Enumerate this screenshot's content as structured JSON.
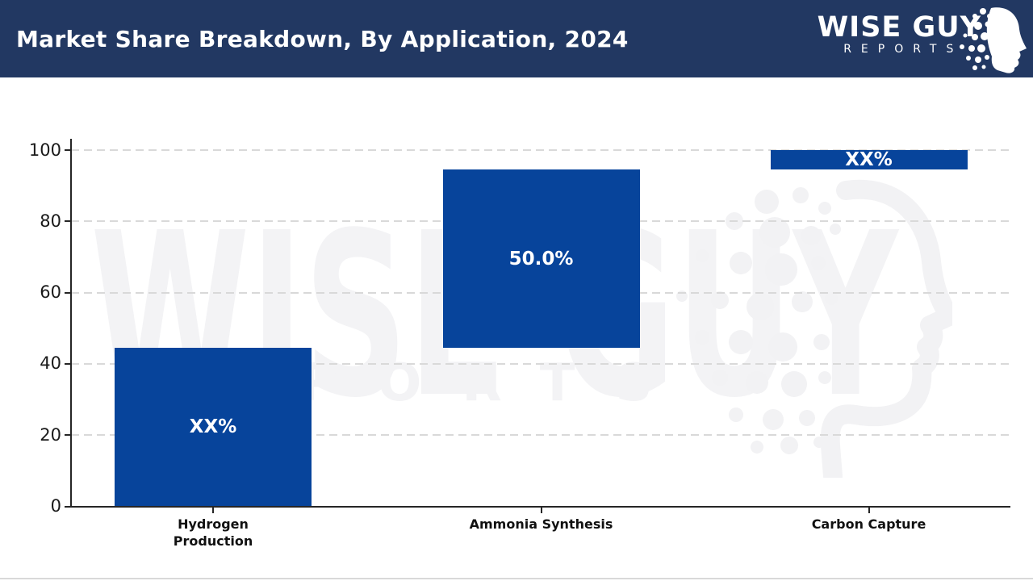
{
  "header": {
    "title": "Market Share Breakdown, By Application, 2024",
    "brand": {
      "line1": "WISE GUY",
      "line2": "REPORTS"
    }
  },
  "watermark": {
    "line1": "WISE GUY",
    "line2": "REPORTS"
  },
  "colors": {
    "header_bg": "#223862",
    "bar": "#07449B",
    "gridline": "#d9d9d9",
    "axis": "#262626",
    "watermark": "#f3f3f5",
    "label_text": "#ffffff"
  },
  "chart_data": {
    "type": "bar",
    "subtype": "floating-waterfall",
    "title": "Market Share Breakdown, By Application, 2024",
    "xlabel": "",
    "ylabel": "",
    "ylim": [
      0,
      100
    ],
    "yticks": [
      0,
      20,
      40,
      60,
      80,
      100
    ],
    "grid": "horizontal-dashed",
    "legend": "none",
    "bar_color": "#07449B",
    "categories": [
      {
        "lines": [
          "Hydrogen",
          "Production"
        ]
      },
      {
        "lines": [
          "Ammonia Synthesis"
        ]
      },
      {
        "lines": [
          "Carbon Capture"
        ]
      }
    ],
    "bars": [
      {
        "category": "Hydrogen Production",
        "start": 0,
        "end": 44.5,
        "value": 44.5,
        "label": "XX%"
      },
      {
        "category": "Ammonia Synthesis",
        "start": 44.5,
        "end": 94.5,
        "value": 50.0,
        "label": "50.0%"
      },
      {
        "category": "Carbon Capture",
        "start": 94.5,
        "end": 100,
        "value": 5.5,
        "label": "XX%"
      }
    ]
  }
}
